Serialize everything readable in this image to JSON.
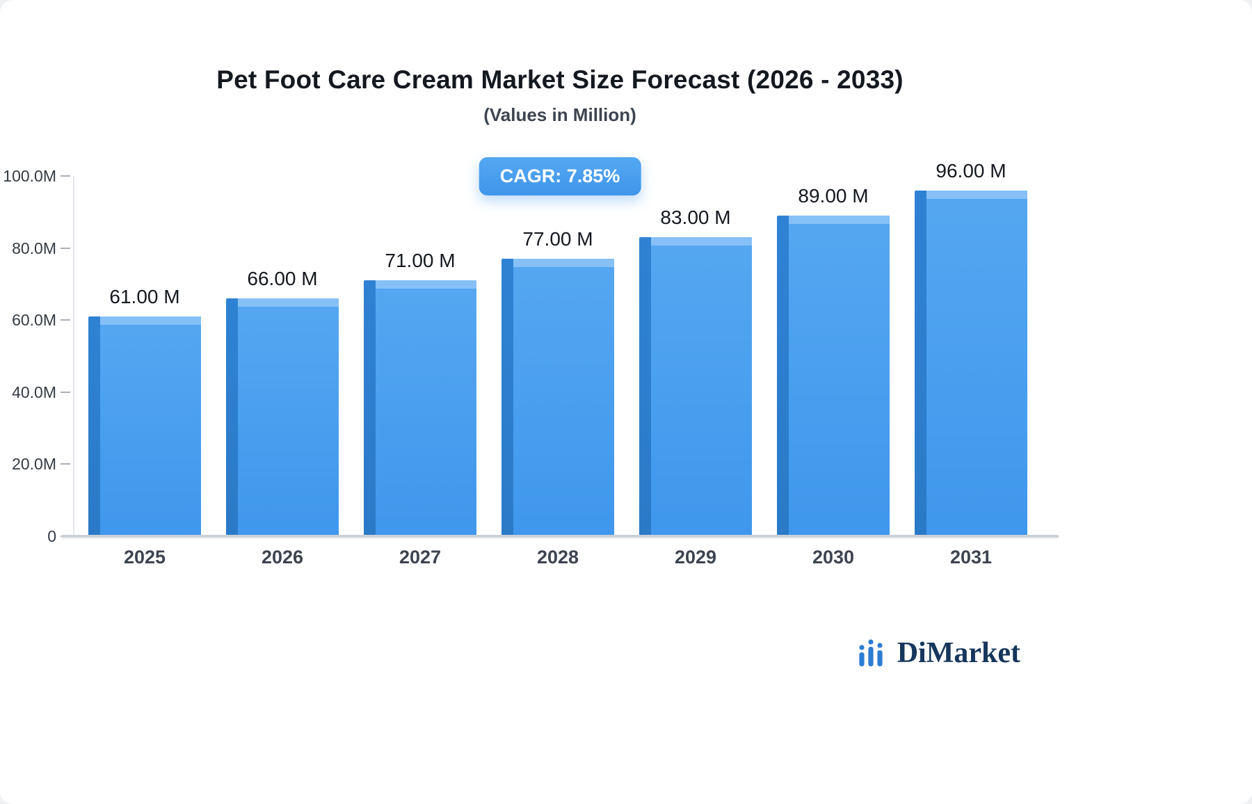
{
  "title": "Pet Foot Care Cream Market Size Forecast (2026 - 2033)",
  "subtitle": "(Values in Million)",
  "badge": "CAGR: 7.85%",
  "logo": {
    "text": "DiMarket"
  },
  "chart_data": {
    "type": "bar",
    "title": "Pet Foot Care Cream Market Size Forecast (2026 - 2033)",
    "subtitle": "(Values in Million)",
    "annotation": "CAGR: 7.85%",
    "categories": [
      "2025",
      "2026",
      "2027",
      "2028",
      "2029",
      "2030",
      "2031"
    ],
    "values": [
      61,
      66,
      71,
      77,
      83,
      89,
      96
    ],
    "value_labels": [
      "61.00 M",
      "66.00 M",
      "71.00 M",
      "77.00 M",
      "83.00 M",
      "89.00 M",
      "96.00 M"
    ],
    "unit": "Million",
    "xlabel": "",
    "ylabel": "",
    "ylim": [
      0,
      100
    ],
    "yticks": [
      "0",
      "20.0M",
      "40.0M",
      "60.0M",
      "80.0M",
      "100.0M"
    ],
    "grid": false,
    "legend": "none",
    "bar_color": "#3f97ec",
    "bar_side_color": "#2b7ac8",
    "bar_top_color": "#8cc3f6",
    "badge_color": "#459cee"
  }
}
